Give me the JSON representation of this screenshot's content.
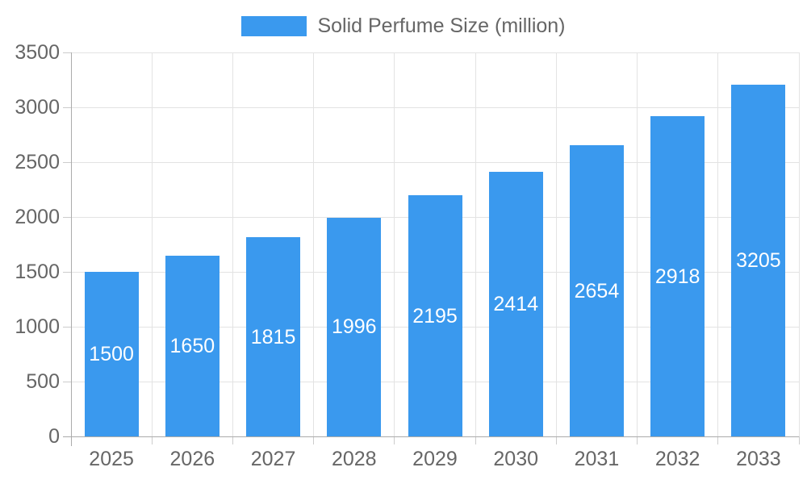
{
  "chart_data": {
    "type": "bar",
    "title": "",
    "legend_label": "Solid Perfume Size (million)",
    "legend_position": "top",
    "categories": [
      "2025",
      "2026",
      "2027",
      "2028",
      "2029",
      "2030",
      "2031",
      "2032",
      "2033"
    ],
    "values": [
      1500,
      1650,
      1815,
      1996,
      2195,
      2414,
      2654,
      2918,
      3205
    ],
    "bar_value_labels": [
      "1500",
      "1650",
      "1815",
      "1996",
      "2195",
      "2414",
      "2654",
      "2918",
      "3205"
    ],
    "xlabel": "",
    "ylabel": "",
    "ylim": [
      0,
      3500
    ],
    "ytick_step": 500,
    "yticks": [
      0,
      500,
      1000,
      1500,
      2000,
      2500,
      3000,
      3500
    ],
    "grid": true,
    "colors": {
      "bar": "#3a99ee",
      "bar_label_text": "#ffffff",
      "axis_text": "#666666",
      "legend_text": "#666666",
      "grid": "#e3e3e3",
      "tick": "#cccccc",
      "axis_line": "#ababab",
      "background": "#ffffff"
    }
  }
}
